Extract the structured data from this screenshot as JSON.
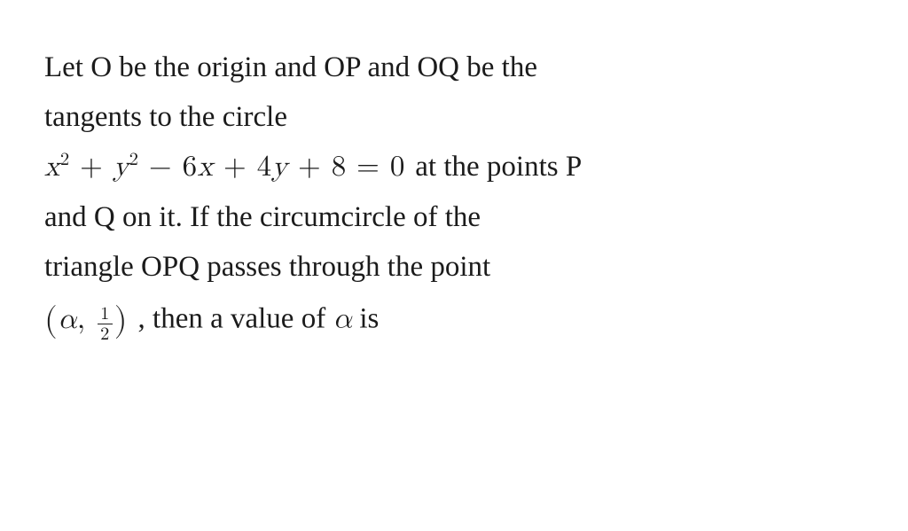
{
  "problem": {
    "text_color": "#1b1b1b",
    "background_color": "#ffffff",
    "font_size_pt": 25,
    "line1": "Let O be the origin and OP and OQ be the",
    "line2": "tangents to the circle",
    "equation": {
      "lhs_terms": [
        "x^2",
        "+",
        "y^2",
        "−",
        "6x",
        "+",
        "4y",
        "+",
        "8"
      ],
      "rhs": "0",
      "x_var": "x",
      "y_var": "y",
      "sq": "2",
      "plus": "+",
      "minus": "−",
      "coef6": "6",
      "coef4": "4",
      "const8": "8",
      "eq": "=",
      "zero": "0"
    },
    "at_the_points": " at the points P",
    "line4": "and Q on it. If the circumcircle of the",
    "line5": "triangle OPQ passes through the point",
    "point": {
      "open": "(",
      "alpha": "α",
      "comma": ",",
      "frac_num": "1",
      "frac_den": "2",
      "close": ")"
    },
    "then_text": ", then a value of ",
    "alpha2": "α",
    "is_text": " is"
  }
}
